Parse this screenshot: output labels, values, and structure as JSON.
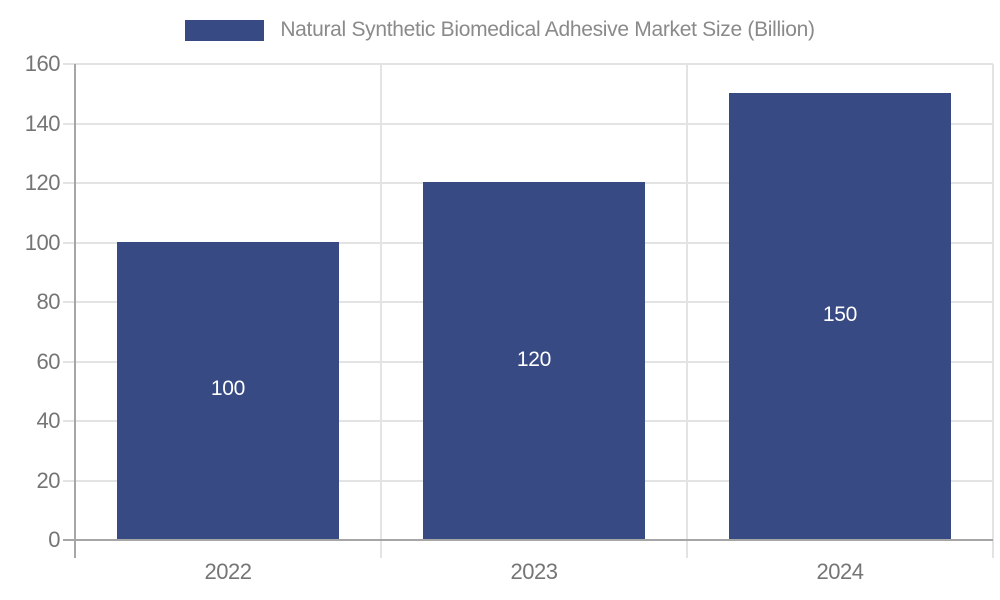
{
  "chart_data": {
    "type": "bar",
    "title": "Natural Synthetic Biomedical Adhesive Market Size (Billion)",
    "categories": [
      "2022",
      "2023",
      "2024"
    ],
    "values": [
      100,
      120,
      150
    ],
    "value_labels": [
      "100",
      "120",
      "150"
    ],
    "xlabel": "",
    "ylabel": "",
    "ylim": [
      0,
      160
    ],
    "yticks": [
      0,
      20,
      40,
      60,
      80,
      100,
      120,
      140,
      160
    ],
    "grid": true,
    "legend_position": "top-center",
    "series": [
      {
        "name": "Natural Synthetic Biomedical Adhesive Market Size (Billion)",
        "values": [
          100,
          120,
          150
        ]
      }
    ],
    "colors": {
      "bar": "#374a84",
      "bar_label": "#ffffff",
      "axis_line": "#a6a6a6",
      "grid_line": "#e3e3e3",
      "tick_label": "#757575",
      "legend_text": "#8a8a8a",
      "background": "#ffffff"
    }
  }
}
